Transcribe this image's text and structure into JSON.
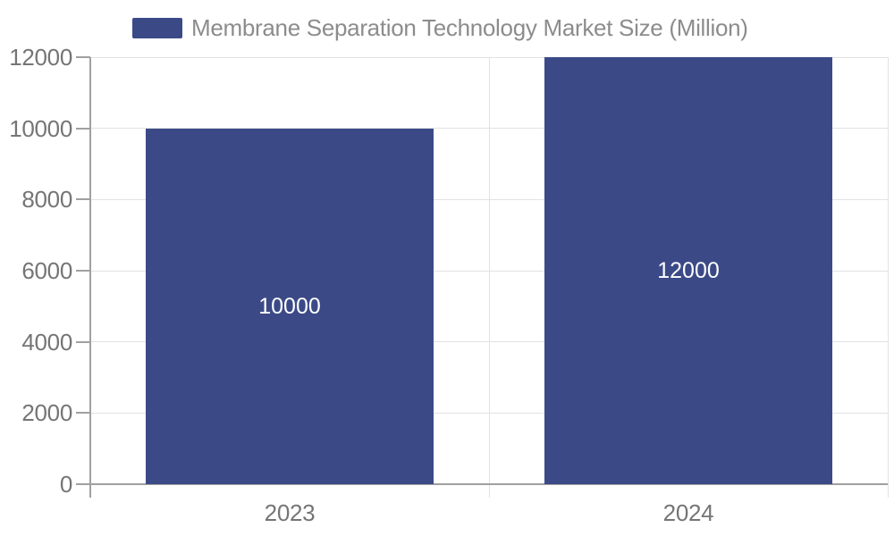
{
  "legend": {
    "label": "Membrane Separation Technology Market Size (Million)"
  },
  "chart_data": {
    "type": "bar",
    "title": "Membrane Separation Technology Market Size (Million)",
    "categories": [
      "2023",
      "2024"
    ],
    "series": [
      {
        "name": "Membrane Separation Technology Market Size (Million)",
        "values": [
          10000,
          12000
        ]
      }
    ],
    "bar_value_labels": [
      "10000",
      "12000"
    ],
    "xlabel": "",
    "ylabel": "",
    "ylim": [
      0,
      12000
    ],
    "yticks": [
      0,
      2000,
      4000,
      6000,
      8000,
      10000,
      12000
    ],
    "ytick_labels": [
      "0",
      "2000",
      "4000",
      "6000",
      "8000",
      "10000",
      "12000"
    ],
    "grid": true,
    "legend_position": "top",
    "colors": {
      "bar": "#3B4A87",
      "bar_label_text": "#FFFFFF",
      "axis_text": "#757575",
      "legend_text": "#8C8C8C",
      "grid_line": "#E2E2E2",
      "axis_line": "#A0A0A0"
    }
  }
}
